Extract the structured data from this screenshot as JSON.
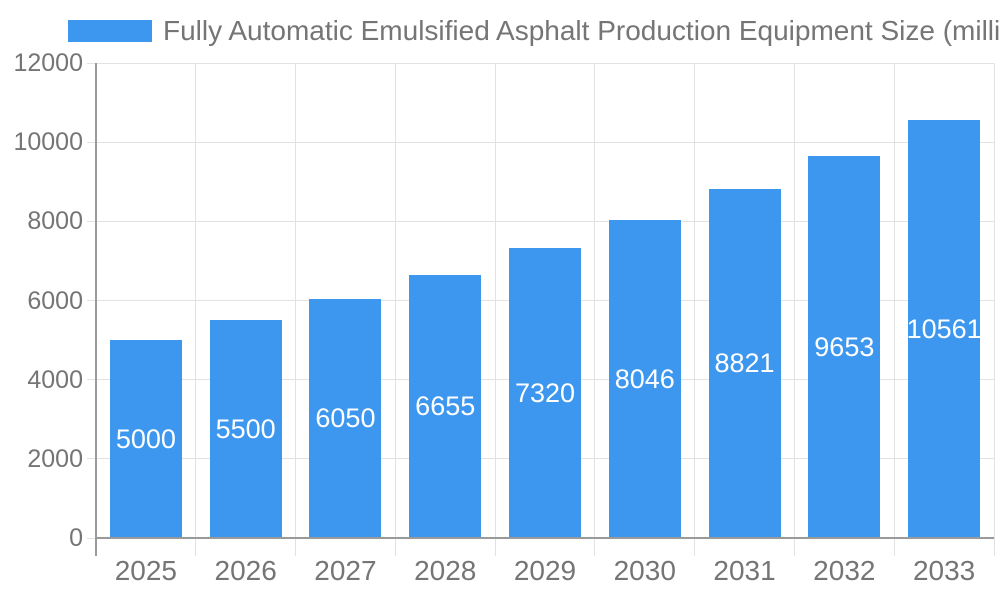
{
  "chart_data": {
    "type": "bar",
    "legend": "Fully Automatic Emulsified Asphalt Production Equipment Size (million)",
    "categories": [
      "2025",
      "2026",
      "2027",
      "2028",
      "2029",
      "2030",
      "2031",
      "2032",
      "2033"
    ],
    "values": [
      5000,
      5500,
      6050,
      6655,
      7320,
      8046,
      8821,
      9653,
      10561
    ],
    "title": "",
    "xlabel": "",
    "ylabel": "",
    "ylim": [
      0,
      12000
    ],
    "y_ticks": [
      0,
      2000,
      4000,
      6000,
      8000,
      10000,
      12000
    ],
    "grid": "horizontal and vertical gridlines",
    "legend_position": "top-left",
    "value_labels": "centered inside bars",
    "colors": {
      "bar": "#3D97EE",
      "value_label": "#FFFFFF",
      "axis_text": "#757575",
      "axis_line": "#9A9A9A",
      "gridline": "#E2E2E2"
    }
  }
}
